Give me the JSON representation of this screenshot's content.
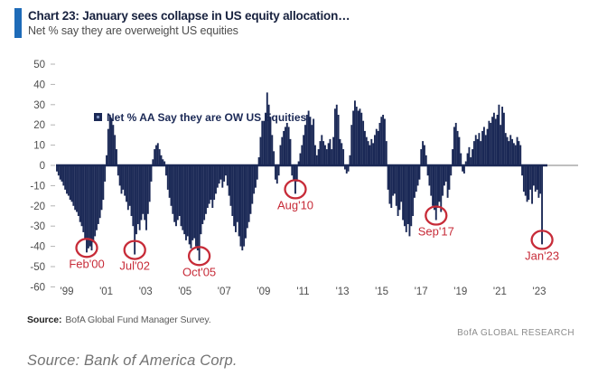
{
  "header": {
    "title": "Chart 23: January sees collapse in US equity allocation…",
    "subtitle": "Net % say they are overweight US equities",
    "accent_color": "#1e6bb8"
  },
  "chart_data": {
    "type": "bar",
    "legend": "Net % AA Say they are OW US Equities",
    "unit": "net %",
    "start": "1998-08",
    "frequency": "monthly",
    "ylim": [
      -60,
      50
    ],
    "y_ticks": [
      50,
      40,
      30,
      20,
      10,
      0,
      -10,
      -20,
      -30,
      -40,
      -50,
      -60
    ],
    "x_ticks": [
      "'99",
      "'01",
      "'03",
      "'05",
      "'07",
      "'09",
      "'11",
      "'13",
      "'15",
      "'17",
      "'19",
      "'21",
      "'23"
    ],
    "grid": false,
    "legend_position": "top-left-inside",
    "bar_color": "#1b2956",
    "axis_text_color": "#4d4d4d",
    "annotation_color": "#c72b38",
    "values": [
      -3,
      -5,
      -7,
      -8,
      -10,
      -12,
      -14,
      -15,
      -17,
      -18,
      -20,
      -22,
      -23,
      -25,
      -28,
      -30,
      -33,
      -36,
      -43,
      -41,
      -40,
      -42,
      -38,
      -35,
      -32,
      -29,
      -26,
      -22,
      -17,
      -8,
      5,
      18,
      25,
      23,
      20,
      15,
      8,
      -5,
      -10,
      -14,
      -12,
      -15,
      -18,
      -22,
      -20,
      -25,
      -30,
      -44,
      -34,
      -29,
      -32,
      -27,
      -24,
      -27,
      -32,
      -24,
      -18,
      -8,
      3,
      8,
      10,
      11,
      8,
      5,
      3,
      2,
      -5,
      -12,
      -16,
      -20,
      -24,
      -28,
      -30,
      -27,
      -25,
      -30,
      -32,
      -34,
      -37,
      -35,
      -39,
      -41,
      -37,
      -36,
      -40,
      -42,
      -47,
      -34,
      -29,
      -27,
      -24,
      -21,
      -19,
      -17,
      -21,
      -17,
      -14,
      -11,
      -9,
      -7,
      -11,
      -8,
      -5,
      -10,
      -15,
      -20,
      -25,
      -30,
      -33,
      -28,
      -35,
      -40,
      -42,
      -40,
      -36,
      -31,
      -28,
      -24,
      -19,
      -14,
      -11,
      -7,
      4,
      14,
      22,
      22,
      26,
      36,
      30,
      24,
      15,
      7,
      -7,
      -9,
      -5,
      10,
      14,
      17,
      19,
      21,
      19,
      13,
      -5,
      -7,
      -14,
      -8,
      2,
      6,
      10,
      15,
      20,
      25,
      27,
      24,
      20,
      23,
      10,
      5,
      8,
      12,
      15,
      12,
      10,
      8,
      11,
      13,
      8,
      14,
      28,
      30,
      25,
      13,
      11,
      8,
      -2,
      -4,
      -3,
      5,
      20,
      27,
      32,
      29,
      27,
      28,
      26,
      22,
      17,
      14,
      12,
      10,
      13,
      11,
      15,
      18,
      17,
      21,
      24,
      25,
      23,
      12,
      -12,
      -19,
      -21,
      -15,
      -14,
      -20,
      -25,
      -22,
      -18,
      -27,
      -30,
      -33,
      -29,
      -35,
      -30,
      -25,
      -16,
      -13,
      -10,
      -7,
      8,
      12,
      10,
      5,
      -5,
      -10,
      -15,
      -20,
      -22,
      -27,
      -21,
      -18,
      -23,
      -15,
      -10,
      -8,
      -16,
      -12,
      -5,
      8,
      19,
      21,
      17,
      14,
      6,
      -3,
      -4,
      2,
      6,
      9,
      4,
      8,
      12,
      15,
      13,
      16,
      12,
      17,
      19,
      15,
      18,
      22,
      21,
      24,
      26,
      23,
      25,
      30,
      20,
      29,
      26,
      16,
      14,
      12,
      15,
      13,
      11,
      10,
      14,
      12,
      10,
      -5,
      -13,
      -15,
      -18,
      -17,
      -12,
      -19,
      -10,
      -13,
      -12,
      -16,
      -14,
      -39
    ],
    "annotations": [
      {
        "label": "Feb'00",
        "month_index": 18,
        "value": -43
      },
      {
        "label": "Jul'02",
        "month_index": 47,
        "value": -44
      },
      {
        "label": "Oct'05",
        "month_index": 86,
        "value": -47
      },
      {
        "label": "Aug'10",
        "month_index": 144,
        "value": -14
      },
      {
        "label": "Sep'17",
        "month_index": 229,
        "value": -27
      },
      {
        "label": "Jan'23",
        "month_index": 293,
        "value": -39
      }
    ]
  },
  "footer": {
    "source_label": "Source:",
    "source_text": "BofA Global Fund Manager Survey.",
    "brand": "BofA GLOBAL RESEARCH"
  },
  "caption": {
    "text": "Source: Bank of America Corp."
  }
}
